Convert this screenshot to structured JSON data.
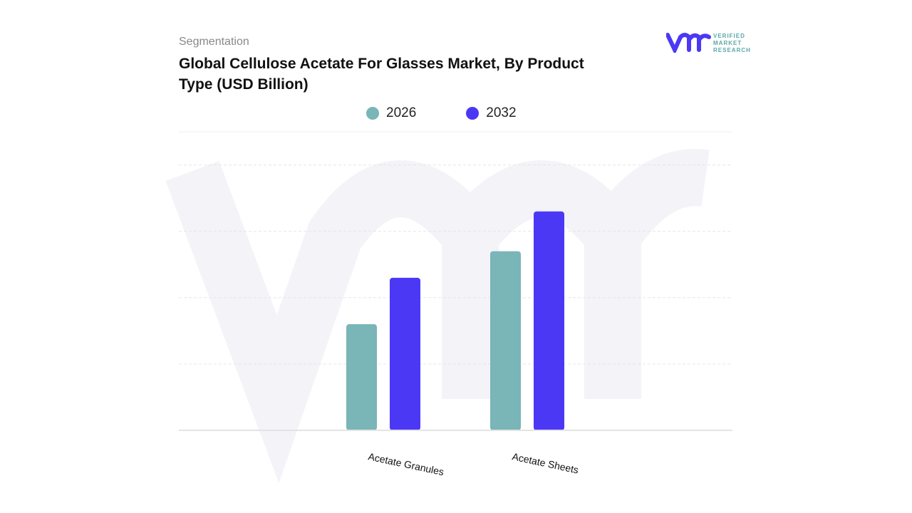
{
  "header": {
    "segment_label": "Segmentation",
    "title": "Global Cellulose Acetate For Glasses Market, By Product Type  (USD Billion)"
  },
  "logo": {
    "text_lines": [
      "VERIFIED",
      "MARKET",
      "RESEARCH"
    ],
    "mark": "vmr"
  },
  "chart_data": {
    "type": "bar",
    "title": "Global Cellulose Acetate For Glasses Market, By Product Type  (USD Billion)",
    "categories": [
      "Acetate Granules",
      "Acetate Sheets"
    ],
    "series": [
      {
        "name": "2026",
        "color": "#7ab5b8",
        "values": [
          1.6,
          2.7
        ]
      },
      {
        "name": "2032",
        "color": "#4b38f5",
        "values": [
          2.3,
          3.3
        ]
      }
    ],
    "ylim": [
      0,
      4.5
    ],
    "grid": true,
    "legend_position": "top",
    "y_tick_labels_shown": false
  }
}
